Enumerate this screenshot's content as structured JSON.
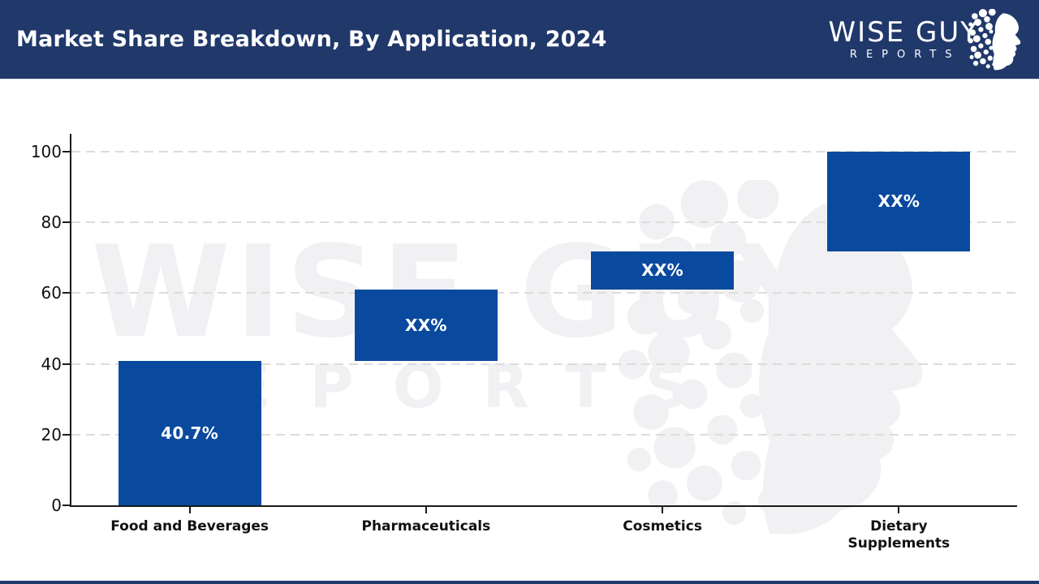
{
  "header": {
    "title": "Market Share Breakdown, By Application, 2024",
    "logo": {
      "line1": "WISE GUY",
      "line2": "REPORTS"
    }
  },
  "watermark": {
    "line1": "WISE GUY",
    "line2": "REPORTS"
  },
  "colors": {
    "header_bg": "#20386a",
    "bar": "#0a4a9e",
    "bar_label": "#ffffff",
    "gridline": "#dcdcdc",
    "axis": "#1a1a1a",
    "watermark": "#f1f1f4"
  },
  "chart_data": {
    "type": "bar",
    "subtype": "waterfall",
    "title": "Market Share Breakdown, By Application, 2024",
    "categories": [
      "Food and Beverages",
      "Pharmaceuticals",
      "Cosmetics",
      "Dietary\nSupplements"
    ],
    "segments": [
      {
        "category": "Food and Beverages",
        "start": 0,
        "end": 40.7,
        "label": "40.7%"
      },
      {
        "category": "Pharmaceuticals",
        "start": 40.7,
        "end": 61.0,
        "label": "XX%"
      },
      {
        "category": "Cosmetics",
        "start": 61.0,
        "end": 71.8,
        "label": "XX%"
      },
      {
        "category": "Dietary Supplements",
        "start": 71.8,
        "end": 100,
        "label": "XX%"
      }
    ],
    "xlabel": "",
    "ylabel": "",
    "ylim": [
      0,
      105
    ],
    "yticks": [
      0,
      20,
      40,
      60,
      80,
      100
    ],
    "grid": "dashed-horizontal",
    "legend": "none"
  }
}
